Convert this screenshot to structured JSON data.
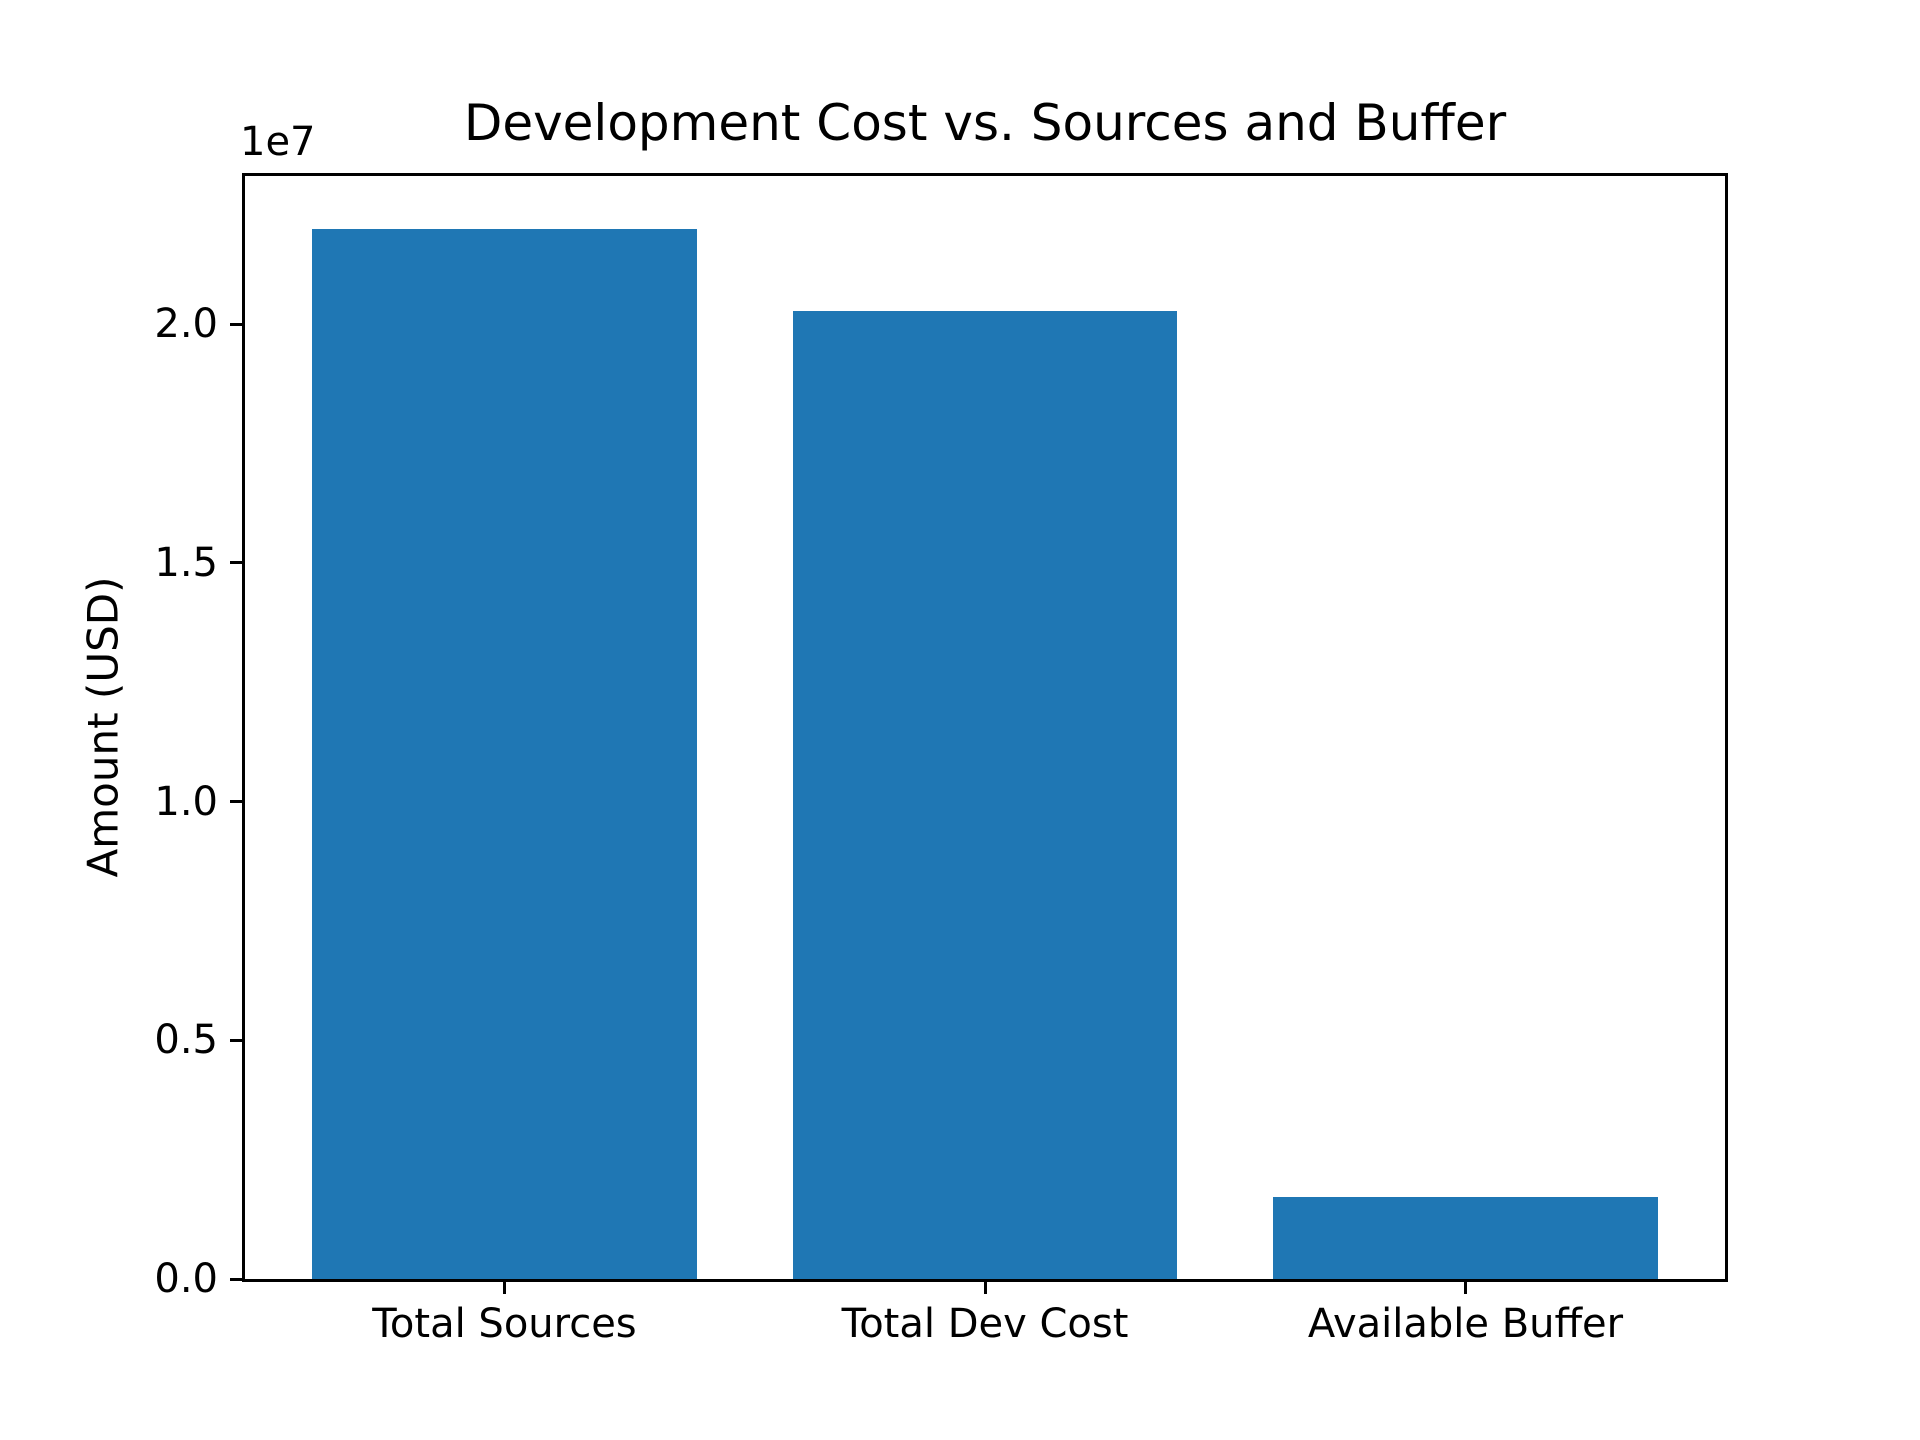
{
  "chart_data": {
    "type": "bar",
    "title": "Development Cost vs. Sources and Buffer",
    "ylabel": "Amount (USD)",
    "xlabel": "",
    "offset_label": "1e7",
    "categories": [
      "Total Sources",
      "Total Dev Cost",
      "Available Buffer"
    ],
    "values": [
      22000000,
      20280000,
      1720000
    ],
    "ylim": [
      0,
      23100000
    ],
    "yticks": [
      {
        "value": 0,
        "label": "0.0"
      },
      {
        "value": 5000000,
        "label": "0.5"
      },
      {
        "value": 10000000,
        "label": "1.0"
      },
      {
        "value": 15000000,
        "label": "1.5"
      },
      {
        "value": 20000000,
        "label": "2.0"
      }
    ],
    "bar_color": "#1f77b4",
    "grid": false,
    "legend_position": "none"
  }
}
